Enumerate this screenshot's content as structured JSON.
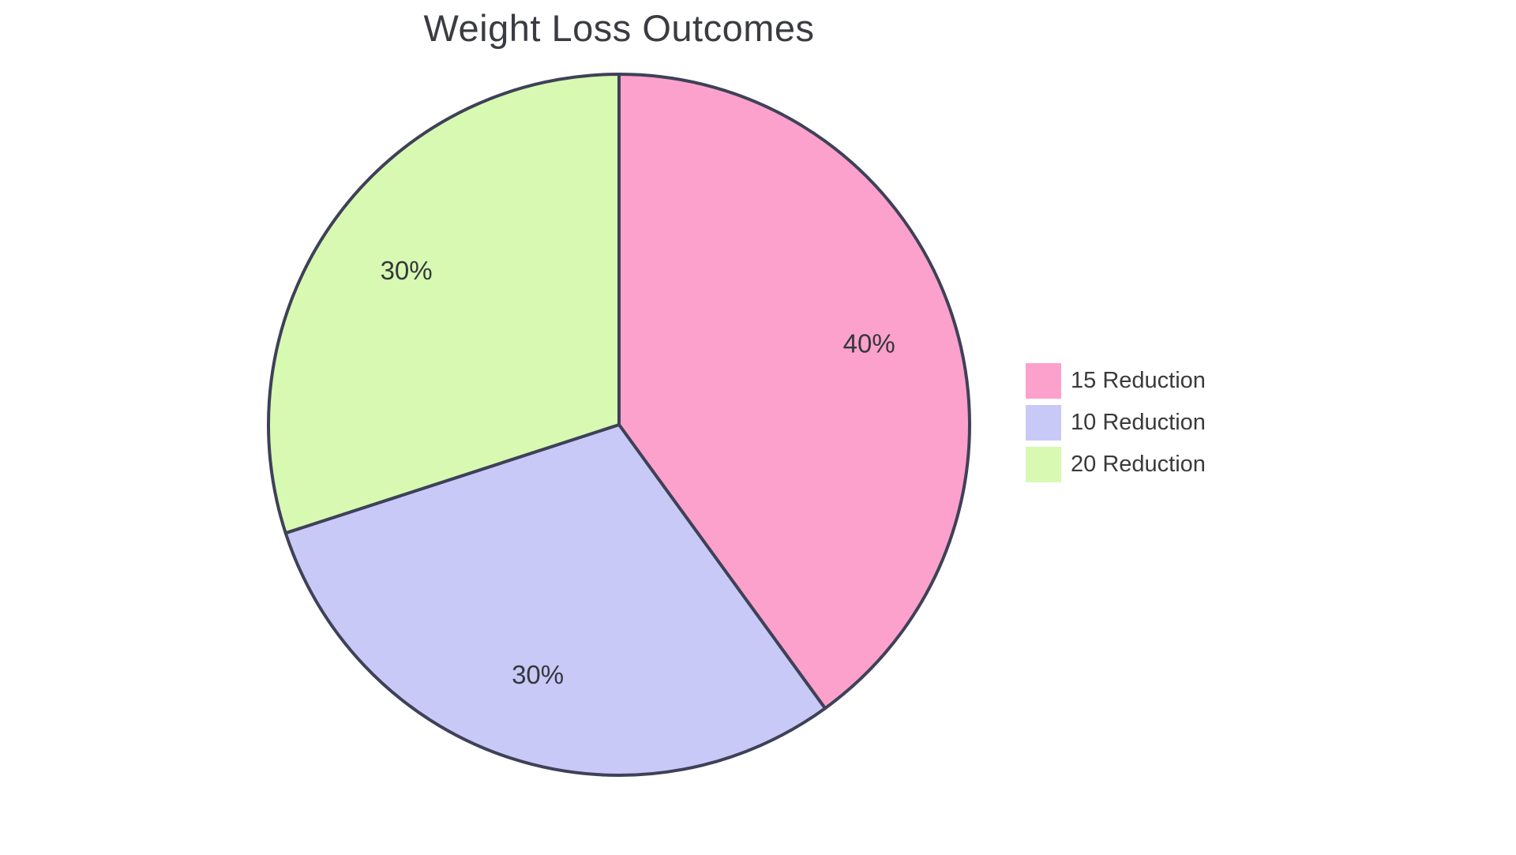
{
  "chart_data": {
    "type": "pie",
    "title": "Weight Loss Outcomes",
    "slices": [
      {
        "label": "15 Reduction",
        "value": 40,
        "pct_label": "40%",
        "color": "#FCA1CB"
      },
      {
        "label": "10 Reduction",
        "value": 30,
        "pct_label": "30%",
        "color": "#C9C9F8"
      },
      {
        "label": "20 Reduction",
        "value": 30,
        "pct_label": "30%",
        "color": "#D7F9B2"
      }
    ],
    "start_angle_deg": 0,
    "direction": "clockwise",
    "legend_position": "right",
    "slice_border_color": "#3E4157",
    "pct_label_color": "#35373D",
    "title_color": "#3A3C42",
    "legend_text_color": "#3A3A3A",
    "background_color": "#FFFFFF"
  }
}
